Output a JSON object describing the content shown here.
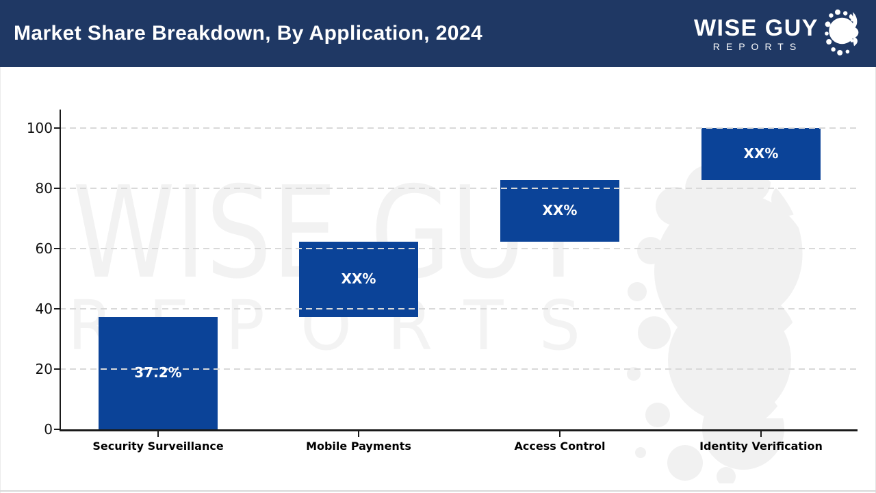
{
  "header": {
    "title": "Market Share Breakdown, By Application, 2024",
    "logo": {
      "line1": "WISE GUY",
      "line2": "REPORTS"
    }
  },
  "watermark": {
    "line1": "WISE GUY",
    "line2": "REPORTS"
  },
  "colors": {
    "header_bg": "#1f3864",
    "bar": "#0b4398",
    "grid": "#d9d9d9",
    "axis": "#1a1a1a",
    "bar_label": "#ffffff",
    "tick_label": "#111111",
    "watermark": "#f2f2f2"
  },
  "chart_data": {
    "type": "bar",
    "subtype": "floating-range-bars (waterfall style, cumulative market share)",
    "title": "Market Share Breakdown, By Application, 2024",
    "xlabel": "",
    "ylabel": "",
    "categories": [
      "Security Surveillance",
      "Mobile Payments",
      "Access Control",
      "Identity Verification"
    ],
    "series": [
      {
        "name": "Market Share",
        "ranges": [
          [
            0,
            37.2
          ],
          [
            37.2,
            62.3
          ],
          [
            62.3,
            82.8
          ],
          [
            82.8,
            100
          ]
        ]
      }
    ],
    "bar_labels": [
      "37.2%",
      "XX%",
      "XX%",
      "XX%"
    ],
    "ylim": [
      0,
      100
    ],
    "yticks": [
      0,
      20,
      40,
      60,
      80,
      100
    ],
    "grid": "horizontal dashed gridlines, drawn over bars",
    "legend": "none"
  }
}
